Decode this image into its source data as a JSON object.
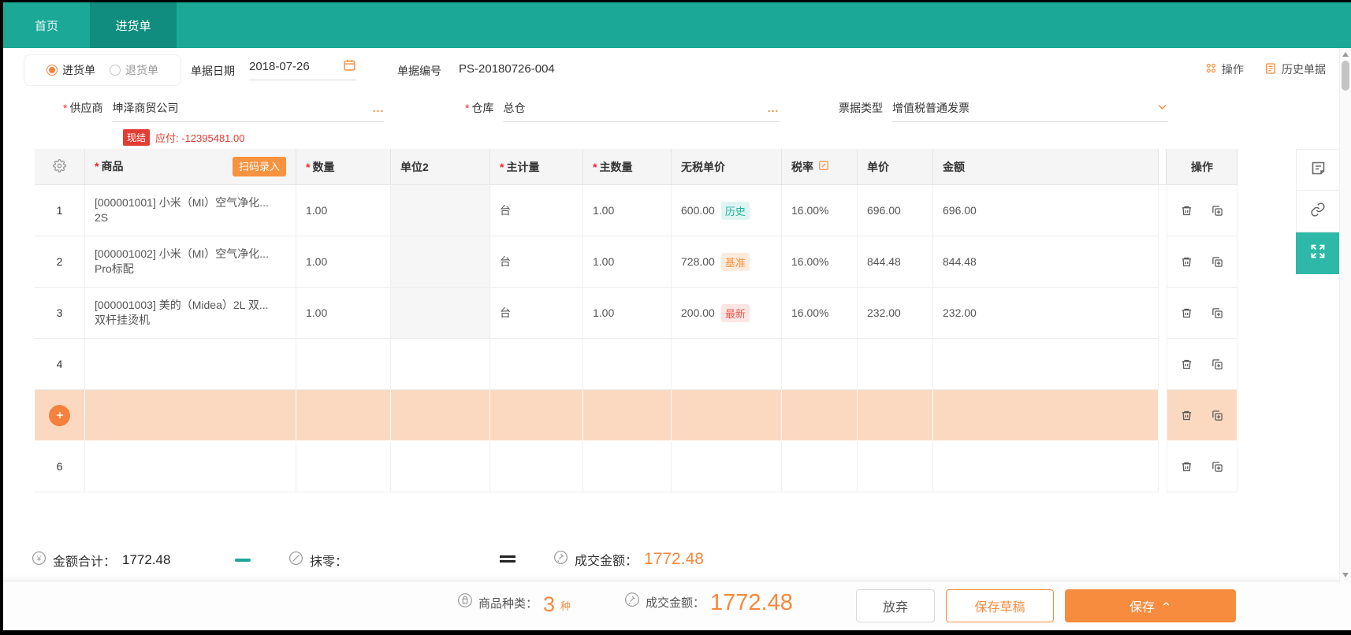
{
  "colors": {
    "teal": "#1ba897",
    "teal_dark": "#108d7f",
    "orange": "#f78c3e",
    "red": "#e23c33",
    "row_highlight": "#fbd9c0",
    "badge_history": {
      "fg": "#1fb3a3",
      "bg": "#def4f1"
    },
    "badge_base": {
      "fg": "#f6923f",
      "bg": "#fdecdd"
    },
    "badge_latest": {
      "fg": "#f0594e",
      "bg": "#fce6e4"
    }
  },
  "ui": {
    "required": "*",
    "ellipsis": "..."
  },
  "tabs": [
    {
      "label": "首页",
      "active": false
    },
    {
      "label": "进货单",
      "active": true
    }
  ],
  "doc_header": {
    "type_options": [
      {
        "label": "进货单",
        "selected": true
      },
      {
        "label": "退货单",
        "selected": false
      }
    ],
    "date_label": "单据日期",
    "date_value": "2018-07-26",
    "no_label": "单据编号",
    "no_value": "PS-20180726-004",
    "ops_label": "操作",
    "history_label": "历史单据"
  },
  "doc_form": {
    "supplier_label": "供应商",
    "supplier_value": "坤泽商贸公司",
    "settle_badge": "现结",
    "payable_text": "应付: -12395481.00",
    "warehouse_label": "仓库",
    "warehouse_value": "总仓",
    "invoice_label": "票据类型",
    "invoice_value": "增值税普通发票"
  },
  "table": {
    "scan_button": "扫码录入",
    "headers": {
      "product": "商品",
      "qty": "数量",
      "unit2": "单位2",
      "main_unit": "主计量",
      "main_qty": "主数量",
      "no_tax_price": "无税单价",
      "tax_rate": "税率",
      "unit_price": "单价",
      "amount": "金额",
      "action": "操作"
    },
    "rows": [
      {
        "type": "data",
        "num": "1",
        "product": [
          "[000001001] 小米（MI）空气净化...",
          "2S"
        ],
        "qty": "1.00",
        "unit2": "",
        "main_unit": "台",
        "main_qty": "1.00",
        "no_tax_price": "600.00",
        "price_badge": "历史",
        "price_badge_type": "history",
        "tax_rate": "16.00%",
        "unit_price": "696.00",
        "amount": "696.00"
      },
      {
        "type": "data",
        "num": "2",
        "product": [
          "[000001002] 小米（MI）空气净化...",
          "Pro标配"
        ],
        "qty": "1.00",
        "unit2": "",
        "main_unit": "台",
        "main_qty": "1.00",
        "no_tax_price": "728.00",
        "price_badge": "基准",
        "price_badge_type": "base",
        "tax_rate": "16.00%",
        "unit_price": "844.48",
        "amount": "844.48"
      },
      {
        "type": "data",
        "num": "3",
        "product": [
          "[000001003] 美的（Midea）2L 双...",
          "双杆挂烫机"
        ],
        "qty": "1.00",
        "unit2": "",
        "main_unit": "台",
        "main_qty": "1.00",
        "no_tax_price": "200.00",
        "price_badge": "最新",
        "price_badge_type": "latest",
        "tax_rate": "16.00%",
        "unit_price": "232.00",
        "amount": "232.00"
      },
      {
        "type": "empty",
        "num": "4"
      },
      {
        "type": "add",
        "num": ""
      },
      {
        "type": "empty",
        "num": "6"
      }
    ]
  },
  "summary": {
    "total_label": "金额合计：",
    "total_value": "1772.48",
    "round_label": "抹零：",
    "round_value": "",
    "deal_label": "成交金额：",
    "deal_value": "1772.48"
  },
  "footer": {
    "kinds_label": "商品种类：",
    "kinds_value": "3",
    "kinds_unit": "种",
    "deal_label": "成交金额：",
    "deal_value": "1772.48",
    "cancel_label": "放弃",
    "draft_label": "保存草稿",
    "save_label": "保存"
  }
}
